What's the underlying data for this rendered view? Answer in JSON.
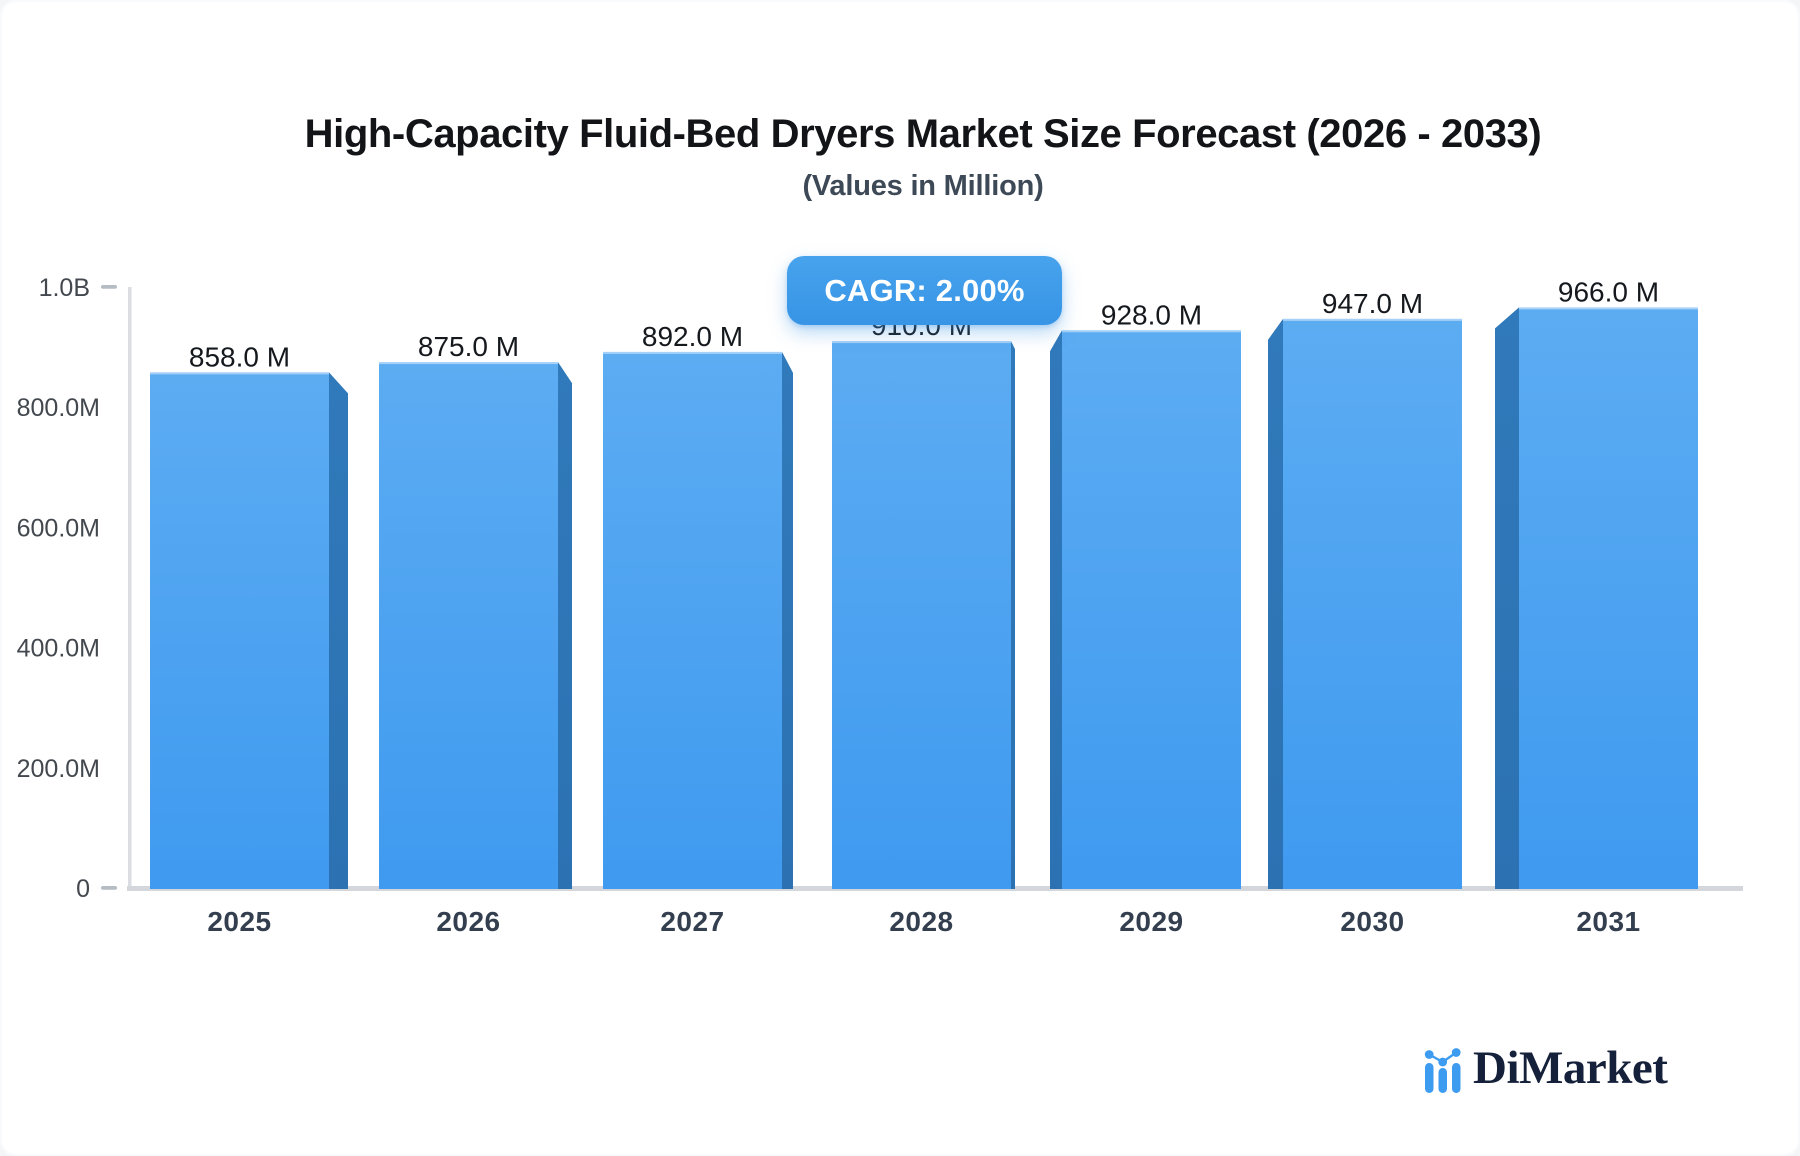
{
  "title": "High-Capacity Fluid-Bed Dryers Market Size Forecast (2026 - 2033)",
  "subtitle": "(Values in Million)",
  "cagr_badge": "CAGR: 2.00%",
  "brand": {
    "name": "DiMarket"
  },
  "chart_data": {
    "type": "bar",
    "title": "High-Capacity Fluid-Bed Dryers Market Size Forecast (2026 - 2033)",
    "subtitle": "(Values in Million)",
    "unit": "Million USD",
    "categories": [
      "2025",
      "2026",
      "2027",
      "2028",
      "2029",
      "2030",
      "2031"
    ],
    "values": [
      858,
      875,
      892,
      910,
      928,
      947,
      966
    ],
    "value_labels": [
      "858.0 M",
      "875.0 M",
      "892.0 M",
      "910.0 M",
      "928.0 M",
      "947.0 M",
      "966.0 M"
    ],
    "cagr_percent": 2.0,
    "ylim": [
      0,
      1000
    ],
    "y_ticks": [
      "1.0B",
      "800.0M",
      "600.0M",
      "400.0M",
      "200.0M",
      "0"
    ],
    "y_tick_values": [
      1000,
      800,
      600,
      400,
      200,
      0
    ],
    "grid": false,
    "legend": false,
    "bar_color_top": "#5cacf2",
    "bar_color_bottom": "#3f9af0",
    "bar_side_color": "#2e76b8",
    "badge_color": "#3e9ce9",
    "axis_color": "#d6dade"
  }
}
